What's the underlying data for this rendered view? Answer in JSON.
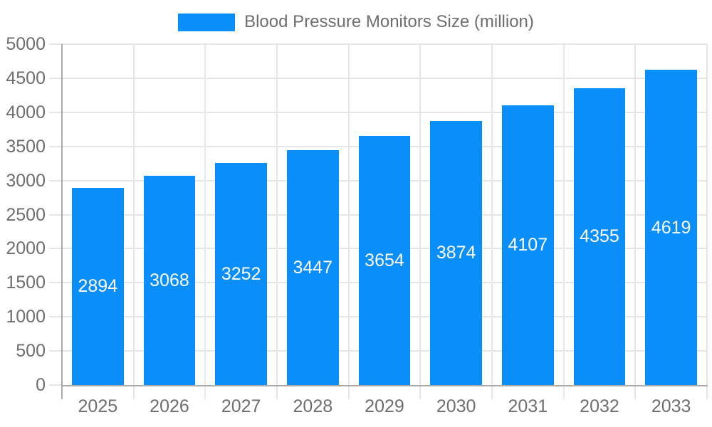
{
  "legend": {
    "label": "Blood Pressure Monitors Size (million)"
  },
  "chart_data": {
    "type": "bar",
    "title": "Blood Pressure Monitors Size (million)",
    "categories": [
      "2025",
      "2026",
      "2027",
      "2028",
      "2029",
      "2030",
      "2031",
      "2032",
      "2033"
    ],
    "series": [
      {
        "name": "Blood Pressure Monitors Size (million)",
        "values": [
          2894,
          3068,
          3252,
          3447,
          3654,
          3874,
          4107,
          4355,
          4619
        ]
      }
    ],
    "values": [
      2894,
      3068,
      3252,
      3447,
      3654,
      3874,
      4107,
      4355,
      4619
    ],
    "xlabel": "",
    "ylabel": "",
    "ylim": [
      0,
      5000
    ],
    "yticks": [
      0,
      500,
      1000,
      1500,
      2000,
      2500,
      3000,
      3500,
      4000,
      4500,
      5000
    ],
    "grid": true,
    "legend_position": "top",
    "bar_labels_inside": true,
    "colors": {
      "bar": "#0a8ef9",
      "bar_label": "#ffffff",
      "axis_text": "#6e6e6e",
      "gridline": "#e6e6e6",
      "axis_line": "#ababab",
      "background": "#ffffff"
    }
  }
}
